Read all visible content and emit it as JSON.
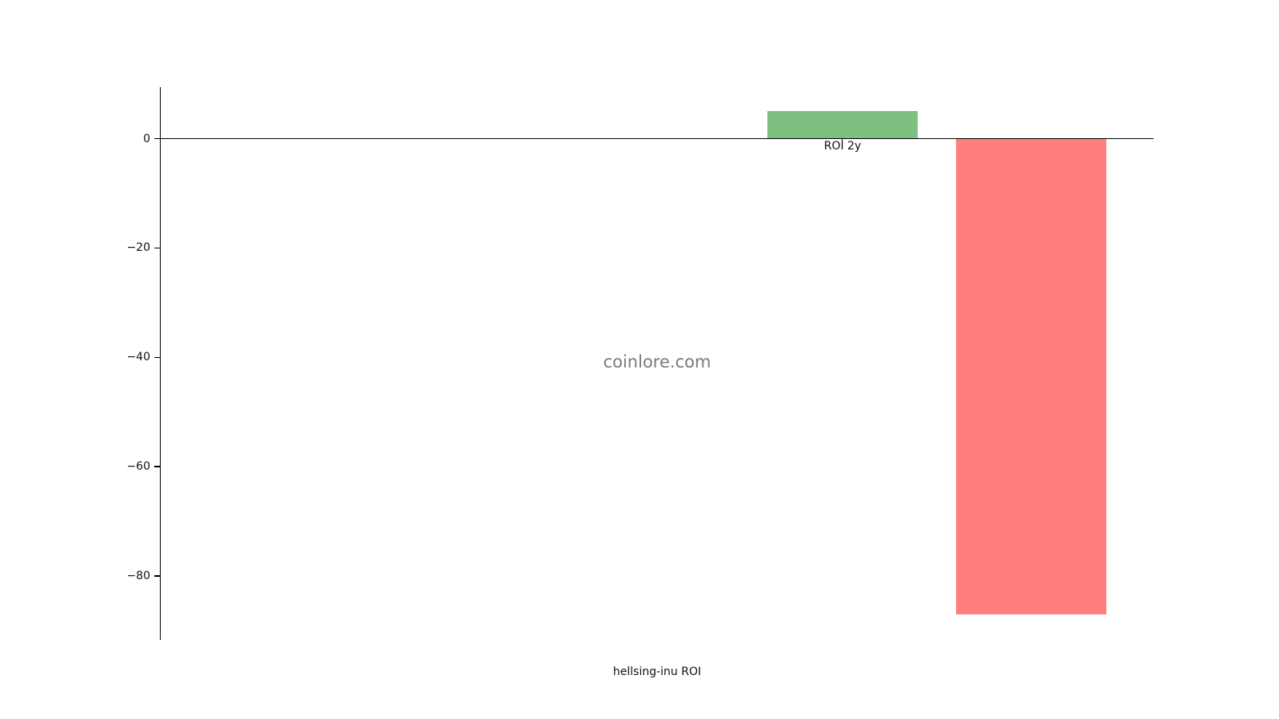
{
  "watermark": "coinlore.com",
  "title": "hellsing-inu ROI",
  "chart_data": {
    "type": "bar",
    "title": "hellsing-inu ROI",
    "xlabel": "",
    "ylabel": "",
    "categories": [
      "ROI 2y",
      ""
    ],
    "values": [
      5,
      -87
    ],
    "series": [
      {
        "name": "ROI",
        "values": [
          5,
          -87
        ]
      }
    ],
    "positive_color": "#7fbf7f",
    "negative_color": "#ff7f7f",
    "axis_color": "#000000",
    "watermark_color": "#7a7a7a",
    "ylim": [
      -91.5,
      9.5
    ],
    "yticks": [
      0,
      -20,
      -40,
      -60,
      -80
    ],
    "ytick_labels": [
      "0",
      "−20",
      "−40",
      "−60",
      "−80"
    ],
    "x_tick_label_shown": "ROI 2y",
    "grid": false,
    "legend_position": "none",
    "annotations": [
      "coinlore.com"
    ]
  }
}
